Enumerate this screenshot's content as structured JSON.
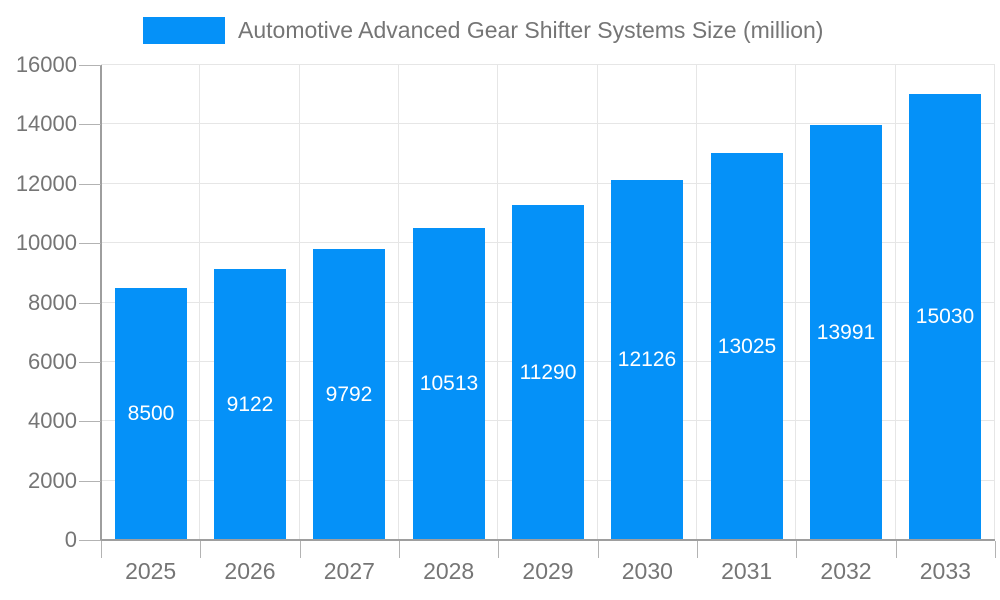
{
  "legend": {
    "label": "Automotive Advanced Gear Shifter Systems Size (million)"
  },
  "chart_data": {
    "type": "bar",
    "title": "Automotive Advanced Gear Shifter Systems Size (million)",
    "categories": [
      "2025",
      "2026",
      "2027",
      "2028",
      "2029",
      "2030",
      "2031",
      "2032",
      "2033"
    ],
    "values": [
      8500,
      9122,
      9792,
      10513,
      11290,
      12126,
      13025,
      13991,
      15030
    ],
    "xlabel": "",
    "ylabel": "",
    "ylim": [
      0,
      16000
    ],
    "yticks": [
      0,
      2000,
      4000,
      6000,
      8000,
      10000,
      12000,
      14000,
      16000
    ],
    "grid": true,
    "legend_position": "top",
    "value_labels": "inside-center"
  },
  "colors": {
    "bar": "#0591f8",
    "axis_line": "#9e9e9e",
    "gridline": "#e6e6e6",
    "tick": "#b3b3b3",
    "axis_text": "#757575",
    "bar_label": "#ffffff",
    "background": "#ffffff"
  }
}
